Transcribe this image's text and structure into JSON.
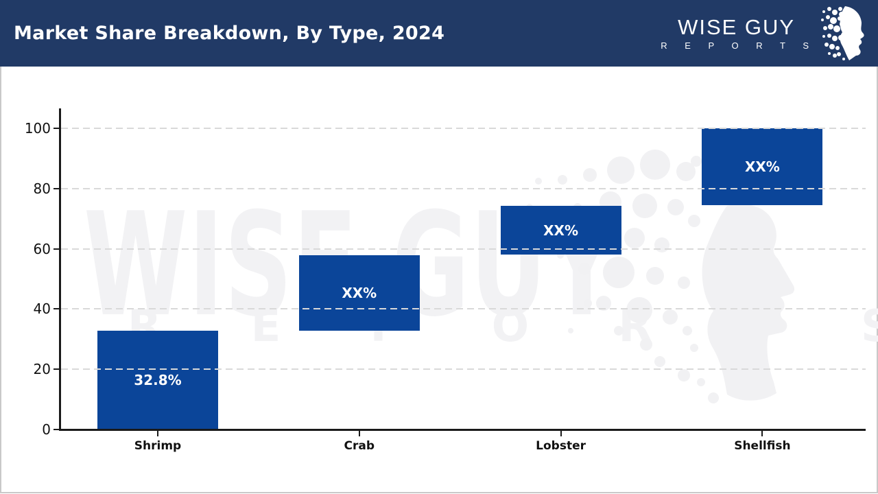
{
  "header": {
    "title": "Market Share Breakdown, By Type, 2024",
    "background": "#213a66",
    "logo": {
      "line1": "WISE GUY",
      "line2": "R E P O R T S"
    }
  },
  "watermark": {
    "line1": "WISE GUY",
    "line2": "R E P O R T S"
  },
  "chart_data": {
    "type": "bar",
    "subtype": "floating-waterfall",
    "title": "Market Share Breakdown, By Type, 2024",
    "categories": [
      "Shrimp",
      "Crab",
      "Lobster",
      "Shellfish"
    ],
    "segments": [
      {
        "category": "Shrimp",
        "start": 0,
        "end": 32.8,
        "label": "32.8%"
      },
      {
        "category": "Crab",
        "start": 32.8,
        "end": 57.8,
        "label": "XX%"
      },
      {
        "category": "Lobster",
        "start": 58,
        "end": 74.2,
        "label": "XX%"
      },
      {
        "category": "Shellfish",
        "start": 74.4,
        "end": 100,
        "label": "XX%"
      }
    ],
    "ylim": [
      0,
      106
    ],
    "yticks": [
      0,
      20,
      40,
      60,
      80,
      100
    ],
    "grid": {
      "axis": "y",
      "style": "dashed",
      "color": "#d9d9d9",
      "above_bars": true
    },
    "bar_color": "#0b4599",
    "bar_label_color": "#ffffff",
    "axis_color": "#1a1a1a",
    "legend": "none"
  }
}
